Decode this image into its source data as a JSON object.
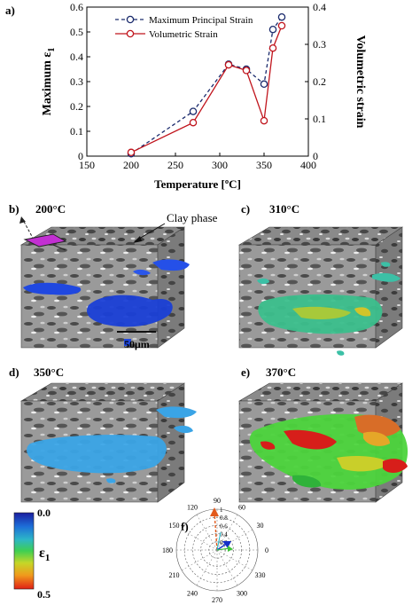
{
  "chart_data": {
    "type": "line",
    "panel_label": "a)",
    "xlabel": "Temperature [ºC]",
    "ylabel_left": "Maximum ε",
    "ylabel_left_sub": "1",
    "ylabel_right": "Volumetric strain",
    "xlim": [
      150,
      400
    ],
    "ylim_left": [
      0,
      0.6
    ],
    "ylim_right": [
      0,
      0.4
    ],
    "x_ticks": [
      "150",
      "200",
      "250",
      "300",
      "350",
      "400"
    ],
    "y_ticks_left": [
      "0",
      "0.1",
      "0.2",
      "0.3",
      "0.4",
      "0.5",
      "0.6"
    ],
    "y_ticks_right": [
      "0",
      "0.1",
      "0.2",
      "0.3",
      "0.4"
    ],
    "legend_position": "top-center",
    "series": [
      {
        "name": "Maximum Principal Strain",
        "axis": "left",
        "style": "dashed",
        "color": "#1a2a6c",
        "x": [
          200,
          270,
          310,
          330,
          350,
          360,
          370
        ],
        "y": [
          0.01,
          0.18,
          0.37,
          0.35,
          0.29,
          0.51,
          0.56
        ]
      },
      {
        "name": "Volumetric Strain",
        "axis": "right",
        "style": "solid",
        "color": "#c0141c",
        "x": [
          200,
          270,
          310,
          330,
          350,
          360,
          370
        ],
        "y": [
          0.01,
          0.09,
          0.245,
          0.23,
          0.095,
          0.29,
          0.35
        ]
      }
    ]
  },
  "panels": {
    "b": {
      "label": "b)",
      "temp": "200°C",
      "annotation": "Clay phase",
      "scale_bar": "50μm"
    },
    "c": {
      "label": "c)",
      "temp": "310°C"
    },
    "d": {
      "label": "d)",
      "temp": "350°C"
    },
    "e": {
      "label": "e)",
      "temp": "370°C"
    }
  },
  "colorbar": {
    "symbol": "ε",
    "sub": "1",
    "top": "0.0",
    "bottom": "0.5"
  },
  "polar": {
    "label": "f)",
    "angle_labels": [
      "90",
      "60",
      "30",
      "0",
      "330",
      "300",
      "270",
      "240",
      "210",
      "180",
      "150",
      "120"
    ],
    "radial_labels": [
      "1",
      "0.8",
      "0.6",
      "0.4",
      "0.2"
    ]
  }
}
